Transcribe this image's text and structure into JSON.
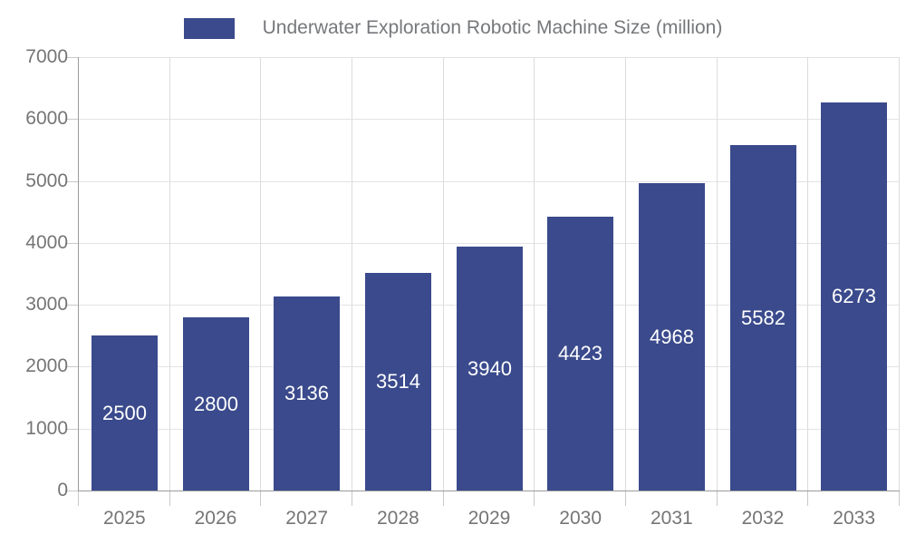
{
  "legend": {
    "label": "Underwater Exploration Robotic Machine Size (million)"
  },
  "chart_data": {
    "type": "bar",
    "title": "Underwater Exploration Robotic Machine Size (million)",
    "categories": [
      "2025",
      "2026",
      "2027",
      "2028",
      "2029",
      "2030",
      "2031",
      "2032",
      "2033"
    ],
    "values": [
      2500,
      2800,
      3136,
      3514,
      3940,
      4423,
      4968,
      5582,
      6273
    ],
    "xlabel": "",
    "ylabel": "",
    "ylim": [
      0,
      7000
    ],
    "ytick_step": 1000,
    "grid": true,
    "legend_position": "top-center",
    "colors": {
      "bar": "#3a4a8c",
      "value_label": "#ffffff",
      "axis_line": "#9b9b9b",
      "tick_mark": "#c9c9cd",
      "gridline": "#e3e3e6",
      "tick_label": "#757575",
      "legend_text": "#76787b",
      "background": "#ffffff"
    }
  }
}
